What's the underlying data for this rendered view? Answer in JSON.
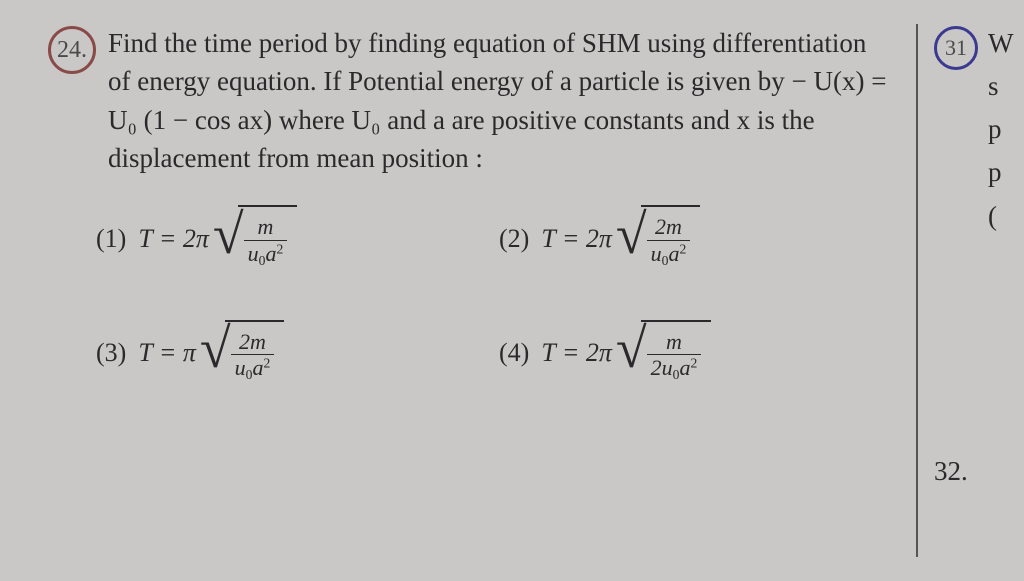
{
  "colors": {
    "paper_bg": "#c9c8c6",
    "text": "#2a2a2c",
    "qnum_border": "#8a4a48",
    "qnum_text": "#4a4a4c",
    "side_circle": "#3a3a90",
    "divider": "#555"
  },
  "question": {
    "number": "24.",
    "text": "Find the time period by finding equation of SHM using differentiation of energy equation. If Potential energy of a particle is given by − U(x) = U₀ (1 − cos ax) where U₀ and a are positive constants and x is the displacement from mean position :"
  },
  "options": [
    {
      "label": "(1)",
      "lead": "T = 2π",
      "num": "m",
      "den_u": "u",
      "den_sub": "0",
      "den_a": "a",
      "den_exp": "2",
      "den_pre": ""
    },
    {
      "label": "(2)",
      "lead": "T = 2π",
      "num": "2m",
      "den_u": "u",
      "den_sub": "0",
      "den_a": "a",
      "den_exp": "2",
      "den_pre": ""
    },
    {
      "label": "(3)",
      "lead": "T = π",
      "num": "2m",
      "den_u": "u",
      "den_sub": "0",
      "den_a": "a",
      "den_exp": "2",
      "den_pre": ""
    },
    {
      "label": "(4)",
      "lead": "T = 2π",
      "num": "m",
      "den_u": "u",
      "den_sub": "0",
      "den_a": "a",
      "den_exp": "2",
      "den_pre": "2"
    }
  ],
  "side": {
    "circle_number": "31",
    "fragments": [
      "W",
      "s",
      "p",
      "p",
      "("
    ],
    "next_q": "32."
  }
}
